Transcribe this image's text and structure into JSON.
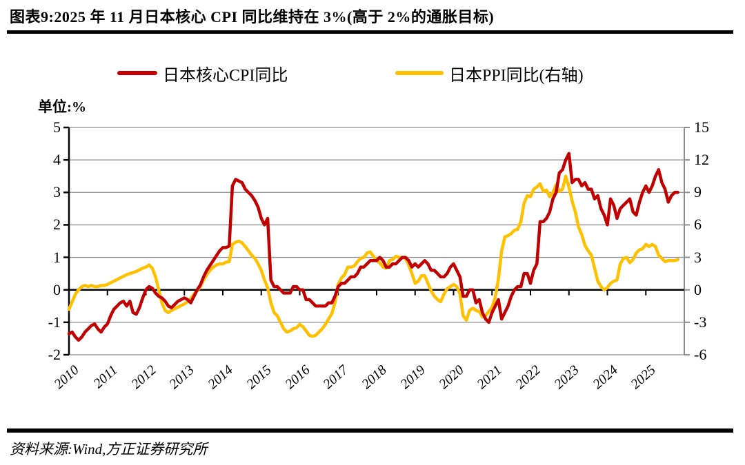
{
  "header": {
    "title": "图表9:2025 年 11 月日本核心 CPI 同比维持在 3%(高于 2%的通胀目标)"
  },
  "legend": [
    {
      "label": "日本核心CPI同比",
      "color": "#c00000"
    },
    {
      "label": "日本PPI同比(右轴)",
      "color": "#ffc000"
    }
  ],
  "unit_label": "单位:%",
  "footer": {
    "source": "资料来源:Wind,方正证券研究所"
  },
  "chart_data": {
    "type": "line",
    "title": "2025年11月日本核心CPI同比维持在3%(高于2%的通胀目标)",
    "x_unit": "month",
    "x_start": "2010-01",
    "x_end": "2025-11",
    "year_labels": [
      "2010",
      "2011",
      "2012",
      "2013",
      "2014",
      "2015",
      "2016",
      "2017",
      "2018",
      "2019",
      "2020",
      "2021",
      "2022",
      "2023",
      "2024",
      "2025"
    ],
    "left_axis": {
      "ticks": [
        5,
        4,
        3,
        2,
        1,
        0,
        -1,
        -2
      ],
      "min": -2,
      "max": 5
    },
    "right_axis": {
      "ticks": [
        15,
        12,
        9,
        6,
        3,
        0,
        -3,
        -6
      ],
      "min": -6,
      "max": 15
    },
    "grid": true,
    "legend_position": "top",
    "colors": {
      "grid": "#8c8c8c",
      "axis": "#000000",
      "right_axis": "#8c8c8c"
    },
    "series": [
      {
        "name": "日本核心CPI同比",
        "axis": "left",
        "color": "#c00000",
        "values": [
          -1.35,
          -1.3,
          -1.45,
          -1.55,
          -1.45,
          -1.3,
          -1.2,
          -1.1,
          -1.05,
          -1.2,
          -1.3,
          -1.15,
          -1.05,
          -0.8,
          -0.6,
          -0.5,
          -0.4,
          -0.35,
          -0.5,
          -0.35,
          -0.7,
          -0.75,
          -0.55,
          -0.25,
          0.0,
          0.1,
          0.05,
          -0.1,
          -0.2,
          -0.25,
          -0.35,
          -0.5,
          -0.55,
          -0.45,
          -0.35,
          -0.3,
          -0.25,
          -0.3,
          -0.4,
          -0.2,
          0.0,
          0.15,
          0.4,
          0.6,
          0.75,
          0.9,
          1.05,
          1.2,
          1.3,
          1.3,
          1.35,
          3.2,
          3.4,
          3.35,
          3.3,
          3.1,
          3.0,
          2.9,
          2.75,
          2.55,
          2.2,
          2.0,
          2.2,
          0.3,
          0.1,
          0.1,
          0.0,
          -0.1,
          -0.1,
          -0.1,
          0.1,
          0.1,
          0.0,
          0.0,
          -0.3,
          -0.3,
          -0.4,
          -0.5,
          -0.5,
          -0.5,
          -0.5,
          -0.4,
          -0.4,
          -0.2,
          0.1,
          0.2,
          0.2,
          0.3,
          0.4,
          0.4,
          0.5,
          0.7,
          0.7,
          0.8,
          0.9,
          0.9,
          0.9,
          1.0,
          0.9,
          0.7,
          0.7,
          0.8,
          0.8,
          0.9,
          1.0,
          1.0,
          0.9,
          0.7,
          0.8,
          0.7,
          0.8,
          0.9,
          0.8,
          0.6,
          0.6,
          0.5,
          0.4,
          0.4,
          0.5,
          0.7,
          0.8,
          0.6,
          0.4,
          -0.2,
          -0.2,
          0.0,
          0.0,
          -0.4,
          -0.3,
          -0.7,
          -0.9,
          -1.0,
          -0.7,
          -0.5,
          -0.3,
          -0.9,
          -0.7,
          -0.5,
          -0.2,
          0.0,
          0.1,
          0.1,
          0.5,
          0.5,
          0.2,
          0.6,
          0.8,
          2.1,
          2.1,
          2.2,
          2.4,
          2.8,
          3.0,
          3.6,
          3.7,
          4.0,
          4.2,
          3.3,
          3.4,
          3.4,
          3.2,
          3.3,
          3.1,
          3.1,
          2.8,
          2.9,
          2.5,
          2.3,
          2.0,
          2.8,
          2.6,
          2.2,
          2.5,
          2.6,
          2.7,
          2.8,
          2.4,
          2.3,
          2.7,
          3.0,
          3.2,
          3.0,
          3.2,
          3.5,
          3.7,
          3.3,
          3.1,
          2.7,
          2.9,
          3.0,
          3.0
        ]
      },
      {
        "name": "日本PPI同比(右轴)",
        "axis": "right",
        "color": "#ffc000",
        "values": [
          -1.8,
          -1.1,
          -0.4,
          0.0,
          0.3,
          0.4,
          0.3,
          0.4,
          0.3,
          0.3,
          0.4,
          0.4,
          0.5,
          0.65,
          0.8,
          0.95,
          1.1,
          1.25,
          1.4,
          1.5,
          1.6,
          1.7,
          1.85,
          2.0,
          2.1,
          2.3,
          2.0,
          1.2,
          0.0,
          -1.2,
          -1.9,
          -2.1,
          -1.9,
          -1.75,
          -1.6,
          -1.45,
          -1.3,
          -1.1,
          -0.8,
          -0.4,
          -0.1,
          0.3,
          0.9,
          1.4,
          1.8,
          2.1,
          2.3,
          2.4,
          2.4,
          2.55,
          2.6,
          4.2,
          4.4,
          4.5,
          4.35,
          4.0,
          3.6,
          3.2,
          2.9,
          2.4,
          1.8,
          0.9,
          0.2,
          -1.2,
          -2.1,
          -2.4,
          -3.0,
          -3.6,
          -3.9,
          -3.8,
          -3.6,
          -3.5,
          -3.2,
          -3.4,
          -3.8,
          -4.2,
          -4.3,
          -4.2,
          -3.9,
          -3.6,
          -3.2,
          -2.7,
          -2.2,
          -1.2,
          0.5,
          1.1,
          1.4,
          2.1,
          2.1,
          2.2,
          2.6,
          2.9,
          3.0,
          3.4,
          3.5,
          3.1,
          2.7,
          2.5,
          2.1,
          2.0,
          2.7,
          2.8,
          3.1,
          3.0,
          3.0,
          2.9,
          2.3,
          1.5,
          0.6,
          0.8,
          1.3,
          1.3,
          0.6,
          -0.1,
          -0.6,
          -0.9,
          -1.1,
          -0.4,
          0.1,
          0.3,
          0.5,
          0.3,
          -0.4,
          -2.4,
          -2.8,
          -1.9,
          -1.7,
          -1.9,
          -2.0,
          -2.5,
          -2.4,
          -2.0,
          -1.6,
          -0.7,
          1.0,
          3.6,
          4.9,
          5.0,
          5.2,
          5.5,
          5.6,
          6.3,
          8.0,
          8.7,
          8.6,
          9.3,
          9.5,
          9.8,
          9.1,
          9.2,
          8.6,
          9.0,
          9.7,
          9.1,
          9.3,
          10.5,
          9.5,
          8.2,
          7.2,
          5.8,
          5.1,
          4.1,
          3.6,
          3.2,
          2.0,
          0.8,
          0.3,
          0.0,
          0.2,
          0.6,
          0.8,
          0.9,
          2.4,
          2.9,
          3.0,
          2.5,
          2.8,
          3.4,
          3.7,
          3.8,
          4.2,
          4.0,
          4.2,
          4.0,
          3.2,
          2.9,
          2.6,
          2.7,
          2.7,
          2.7,
          2.8
        ]
      }
    ]
  }
}
